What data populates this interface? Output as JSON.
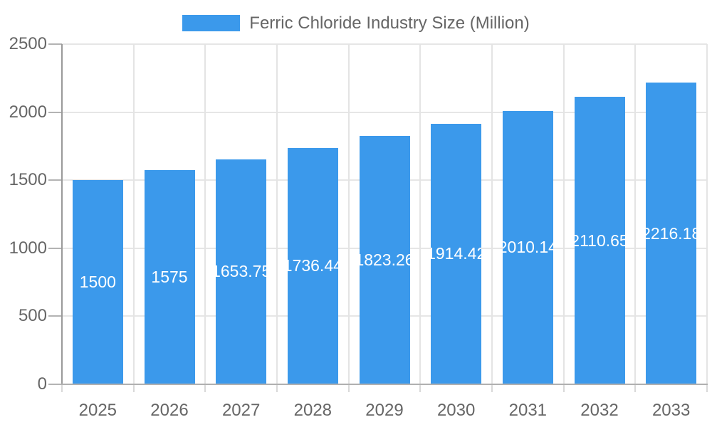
{
  "legend": {
    "label": "Ferric Chloride Industry Size (Million)"
  },
  "chart_data": {
    "type": "bar",
    "title": "Ferric Chloride Industry Size (Million)",
    "series_name": "Ferric Chloride Industry Size (Million)",
    "categories": [
      "2025",
      "2026",
      "2027",
      "2028",
      "2029",
      "2030",
      "2031",
      "2032",
      "2033"
    ],
    "values": [
      1500,
      1575,
      1653.75,
      1736.44,
      1823.26,
      1914.42,
      2010.14,
      2110.65,
      2216.18
    ],
    "value_labels": [
      "1500",
      "1575",
      "1653.75",
      "1736.44",
      "1823.26",
      "1914.42",
      "2010.14",
      "2110.65",
      "2216.18"
    ],
    "xlabel": "",
    "ylabel": "",
    "ylim": [
      0,
      2500
    ],
    "yticks": [
      0,
      500,
      1000,
      1500,
      2000,
      2500
    ],
    "grid": true,
    "legend_position": "top-center",
    "bar_color": "#3b99eb",
    "value_label_color": "#ffffff",
    "axis_text_color": "#666666",
    "gridline_color": "#e6e6e6"
  }
}
